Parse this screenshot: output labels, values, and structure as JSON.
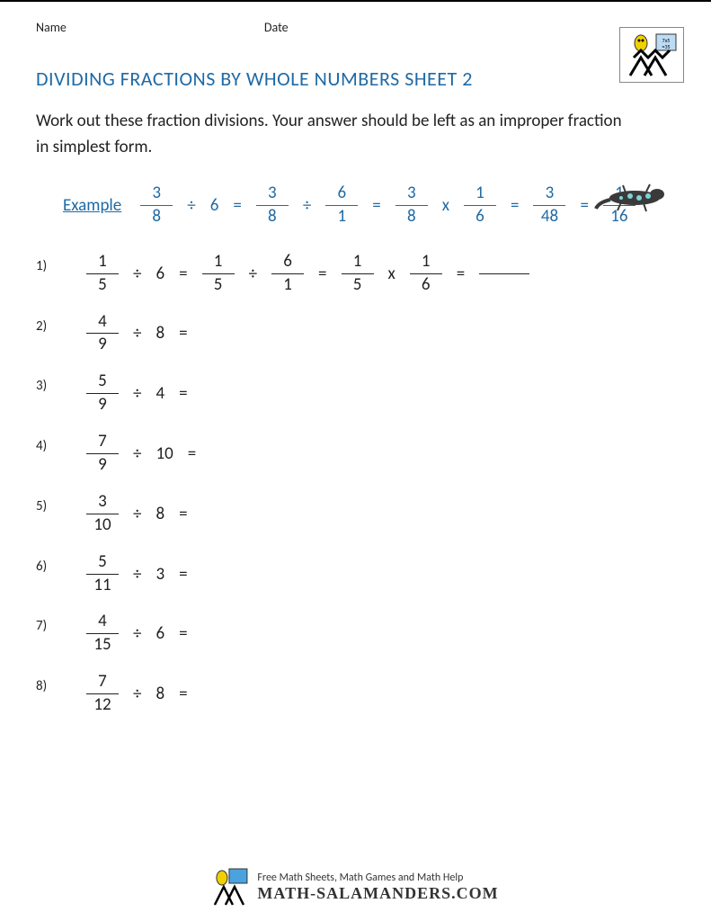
{
  "header": {
    "name_label": "Name",
    "date_label": "Date"
  },
  "title": "DIVIDING FRACTIONS BY WHOLE NUMBERS SHEET 2",
  "instructions": "Work out these fraction divisions. Your answer should be left as an improper fraction in simplest form.",
  "example": {
    "label": "Example",
    "steps": [
      {
        "type": "frac",
        "num": "3",
        "den": "8"
      },
      {
        "type": "op",
        "sym": "÷"
      },
      {
        "type": "whole",
        "val": "6"
      },
      {
        "type": "op",
        "sym": "="
      },
      {
        "type": "frac",
        "num": "3",
        "den": "8"
      },
      {
        "type": "op",
        "sym": "÷"
      },
      {
        "type": "frac",
        "num": "6",
        "den": "1"
      },
      {
        "type": "op",
        "sym": "="
      },
      {
        "type": "frac",
        "num": "3",
        "den": "8"
      },
      {
        "type": "op",
        "sym": "x"
      },
      {
        "type": "frac",
        "num": "1",
        "den": "6"
      },
      {
        "type": "op",
        "sym": "="
      },
      {
        "type": "frac",
        "num": "3",
        "den": "48"
      },
      {
        "type": "op",
        "sym": "="
      },
      {
        "type": "frac",
        "num": "1",
        "den": "16"
      }
    ]
  },
  "problems": [
    {
      "num": "1)",
      "steps": [
        {
          "type": "frac",
          "num": "1",
          "den": "5"
        },
        {
          "type": "op",
          "sym": "÷"
        },
        {
          "type": "whole",
          "val": "6"
        },
        {
          "type": "op",
          "sym": "="
        },
        {
          "type": "frac",
          "num": "1",
          "den": "5"
        },
        {
          "type": "op",
          "sym": "÷"
        },
        {
          "type": "frac",
          "num": "6",
          "den": "1"
        },
        {
          "type": "op",
          "sym": "="
        },
        {
          "type": "frac",
          "num": "1",
          "den": "5"
        },
        {
          "type": "op",
          "sym": "x"
        },
        {
          "type": "frac",
          "num": "1",
          "den": "6"
        },
        {
          "type": "op",
          "sym": "="
        },
        {
          "type": "blank"
        }
      ]
    },
    {
      "num": "2)",
      "steps": [
        {
          "type": "frac",
          "num": "4",
          "den": "9"
        },
        {
          "type": "op",
          "sym": "÷"
        },
        {
          "type": "whole",
          "val": "8"
        },
        {
          "type": "op",
          "sym": "="
        }
      ]
    },
    {
      "num": "3)",
      "steps": [
        {
          "type": "frac",
          "num": "5",
          "den": "9"
        },
        {
          "type": "op",
          "sym": "÷"
        },
        {
          "type": "whole",
          "val": "4"
        },
        {
          "type": "op",
          "sym": "="
        }
      ]
    },
    {
      "num": "4)",
      "steps": [
        {
          "type": "frac",
          "num": "7",
          "den": "9"
        },
        {
          "type": "op",
          "sym": "÷"
        },
        {
          "type": "whole",
          "val": "10"
        },
        {
          "type": "op",
          "sym": "="
        }
      ]
    },
    {
      "num": "5)",
      "steps": [
        {
          "type": "frac",
          "num": "3",
          "den": "10"
        },
        {
          "type": "op",
          "sym": "÷"
        },
        {
          "type": "whole",
          "val": "8"
        },
        {
          "type": "op",
          "sym": "="
        }
      ]
    },
    {
      "num": "6)",
      "steps": [
        {
          "type": "frac",
          "num": "5",
          "den": "11"
        },
        {
          "type": "op",
          "sym": "÷"
        },
        {
          "type": "whole",
          "val": "3"
        },
        {
          "type": "op",
          "sym": "="
        }
      ]
    },
    {
      "num": "7)",
      "steps": [
        {
          "type": "frac",
          "num": "4",
          "den": "15"
        },
        {
          "type": "op",
          "sym": "÷"
        },
        {
          "type": "whole",
          "val": "6"
        },
        {
          "type": "op",
          "sym": "="
        }
      ]
    },
    {
      "num": "8)",
      "steps": [
        {
          "type": "frac",
          "num": "7",
          "den": "12"
        },
        {
          "type": "op",
          "sym": "÷"
        },
        {
          "type": "whole",
          "val": "8"
        },
        {
          "type": "op",
          "sym": "="
        }
      ]
    }
  ],
  "footer": {
    "tagline": "Free Math Sheets, Math Games and Math Help",
    "site": "MATH-SALAMANDERS.COM"
  },
  "colors": {
    "title": "#1f6aa5",
    "text": "#222222",
    "example": "#1f6aa5"
  }
}
